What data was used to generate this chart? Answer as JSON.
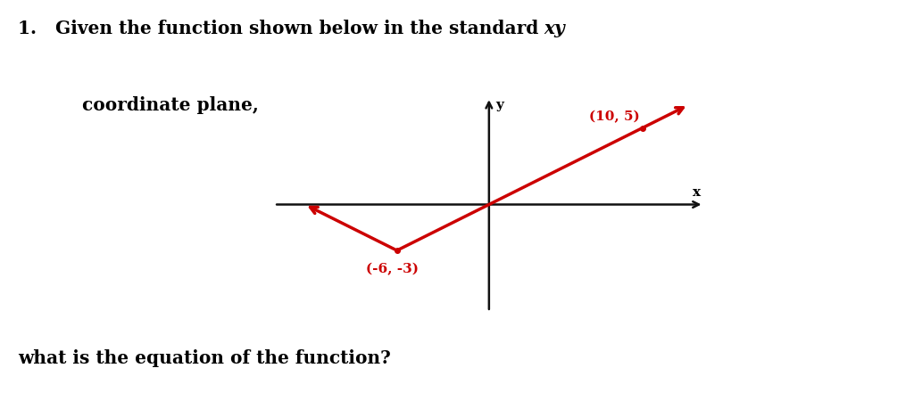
{
  "bottom_text": "what is the equation of the function?",
  "vertex_x": -6,
  "vertex_y": -3,
  "point2_x": 10,
  "point2_y": 5,
  "line_color": "#cc0000",
  "axis_color": "#111111",
  "label_color": "#cc0000",
  "annotation_fontsize": 11,
  "text_fontsize": 14.5,
  "line_width": 2.5,
  "axis_linewidth": 1.8,
  "xlim": [
    -14,
    14
  ],
  "ylim": [
    -7,
    7
  ],
  "left_end_x": -12,
  "right_end_x": 13
}
